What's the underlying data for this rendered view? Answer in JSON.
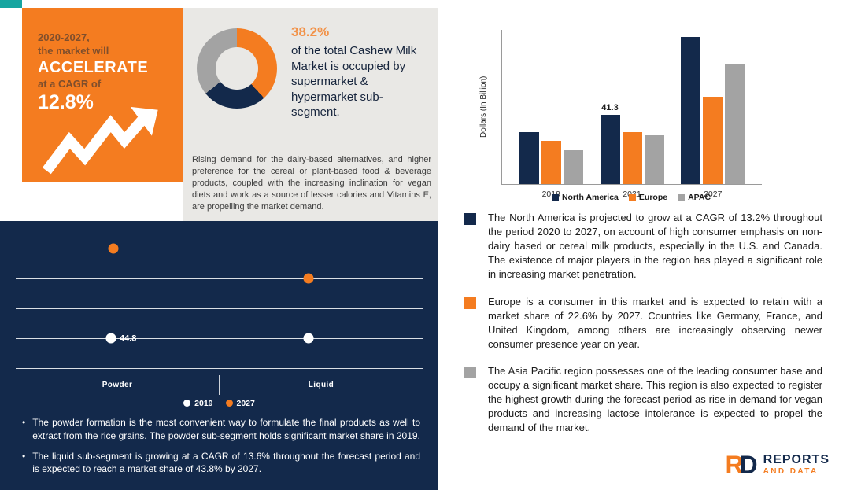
{
  "colors": {
    "orange": "#F47C20",
    "navy": "#13294B",
    "gray": "#A3A3A3",
    "panel_gray": "#E9E8E5",
    "white": "#FFFFFF"
  },
  "accelerate_box": {
    "period": "2020-2027,",
    "line2": "the market will",
    "accelerate": "ACCELERATE",
    "cagr_label": "at a CAGR of",
    "cagr_value": "12.8%"
  },
  "supermarket_callout": {
    "percent": "38.2%",
    "text": "of the total Cashew Milk Market is occupied by supermarket & hypermarket sub-segment.",
    "body": "Rising demand for the dairy-based alternatives, and higher preference for the cereal or plant-based food & beverage products, coupled with the increasing inclination for vegan diets and work as a source of lesser calories and Vitamins E, are propelling the market demand."
  },
  "formation_panel": {
    "bullets": [
      "The powder formation is the most convenient way to formulate the final products as well to extract from the rice grains. The powder sub-segment holds significant market share in 2019.",
      "The liquid sub-segment is growing at a CAGR of 13.6% throughout the forecast period and is expected to reach a market share of 43.8% by 2027."
    ]
  },
  "region_notes": [
    {
      "color": "#13294B",
      "text": "The North America is projected to grow at a CAGR of 13.2% throughout the period 2020 to 2027, on account of high consumer emphasis on non-dairy based or cereal milk products, especially in the U.S. and Canada. The existence of major players in the region has played a significant role in increasing market penetration."
    },
    {
      "color": "#F47C20",
      "text": "Europe is a consumer in this market and is expected to retain with a market share of 22.6% by 2027. Countries like Germany, France, and United Kingdom, among others are increasingly observing newer consumer presence year on year."
    },
    {
      "color": "#A3A3A3",
      "text": "The Asia Pacific region possesses one of the leading consumer base and occupy a significant market share. This region is also expected to register the highest growth during the forecast period as rise in demand for vegan products and increasing lactose intolerance is expected to propel the demand of the market."
    }
  ],
  "logo": {
    "monogram_r": "R",
    "monogram_d": "D",
    "line1": "REPORTS",
    "line2": "AND DATA"
  },
  "chart_data": [
    {
      "id": "supermarket-donut",
      "type": "pie",
      "donut": true,
      "slices": [
        {
          "label": "Supermarket & Hypermarket",
          "value": 38.2,
          "color": "#F47C20"
        },
        {
          "label": "Other segment (navy)",
          "value": 26.0,
          "color": "#13294B"
        },
        {
          "label": "Other segment (gray)",
          "value": 35.8,
          "color": "#A3A3A3"
        }
      ],
      "annotation": "38.2% of the total Cashew Milk Market is occupied by supermarket & hypermarket sub-segment."
    },
    {
      "id": "formation-dot-plot",
      "type": "scatter",
      "categories": [
        "Powder",
        "Liquid"
      ],
      "legend": [
        {
          "label": "2019",
          "color": "#FFFFFF"
        },
        {
          "label": "2027",
          "color": "#F47C20"
        }
      ],
      "gridline_count": 5,
      "points": [
        {
          "series": "2027",
          "category": "Powder",
          "x_pct": 24,
          "line": 0,
          "color": "#F47C20",
          "label": ""
        },
        {
          "series": "2027",
          "category": "Liquid",
          "x_pct": 72,
          "line": 1,
          "color": "#F47C20",
          "label": ""
        },
        {
          "series": "2019",
          "category": "Powder",
          "x_pct": 23.5,
          "line": 3,
          "color": "#FFFFFF",
          "label": "44.8"
        },
        {
          "series": "2019",
          "category": "Liquid",
          "x_pct": 72,
          "line": 3,
          "color": "#FFFFFF",
          "label": ""
        }
      ]
    },
    {
      "id": "regional-bars",
      "type": "bar",
      "ylabel": "Dollars (In Billion)",
      "categories": [
        "2019",
        "2021",
        "2027"
      ],
      "series": [
        {
          "name": "North America",
          "color": "#13294B",
          "values": [
            31,
            41.3,
            88
          ]
        },
        {
          "name": "Europe",
          "color": "#F47C20",
          "values": [
            26,
            31,
            52
          ]
        },
        {
          "name": "APAC",
          "color": "#A3A3A3",
          "values": [
            20,
            29,
            72
          ]
        }
      ],
      "ylim": [
        0,
        92
      ],
      "grid": false,
      "legend_position": "bottom",
      "bar_labels": [
        {
          "series_index": 0,
          "category_index": 1,
          "text": "41.3"
        }
      ]
    }
  ]
}
